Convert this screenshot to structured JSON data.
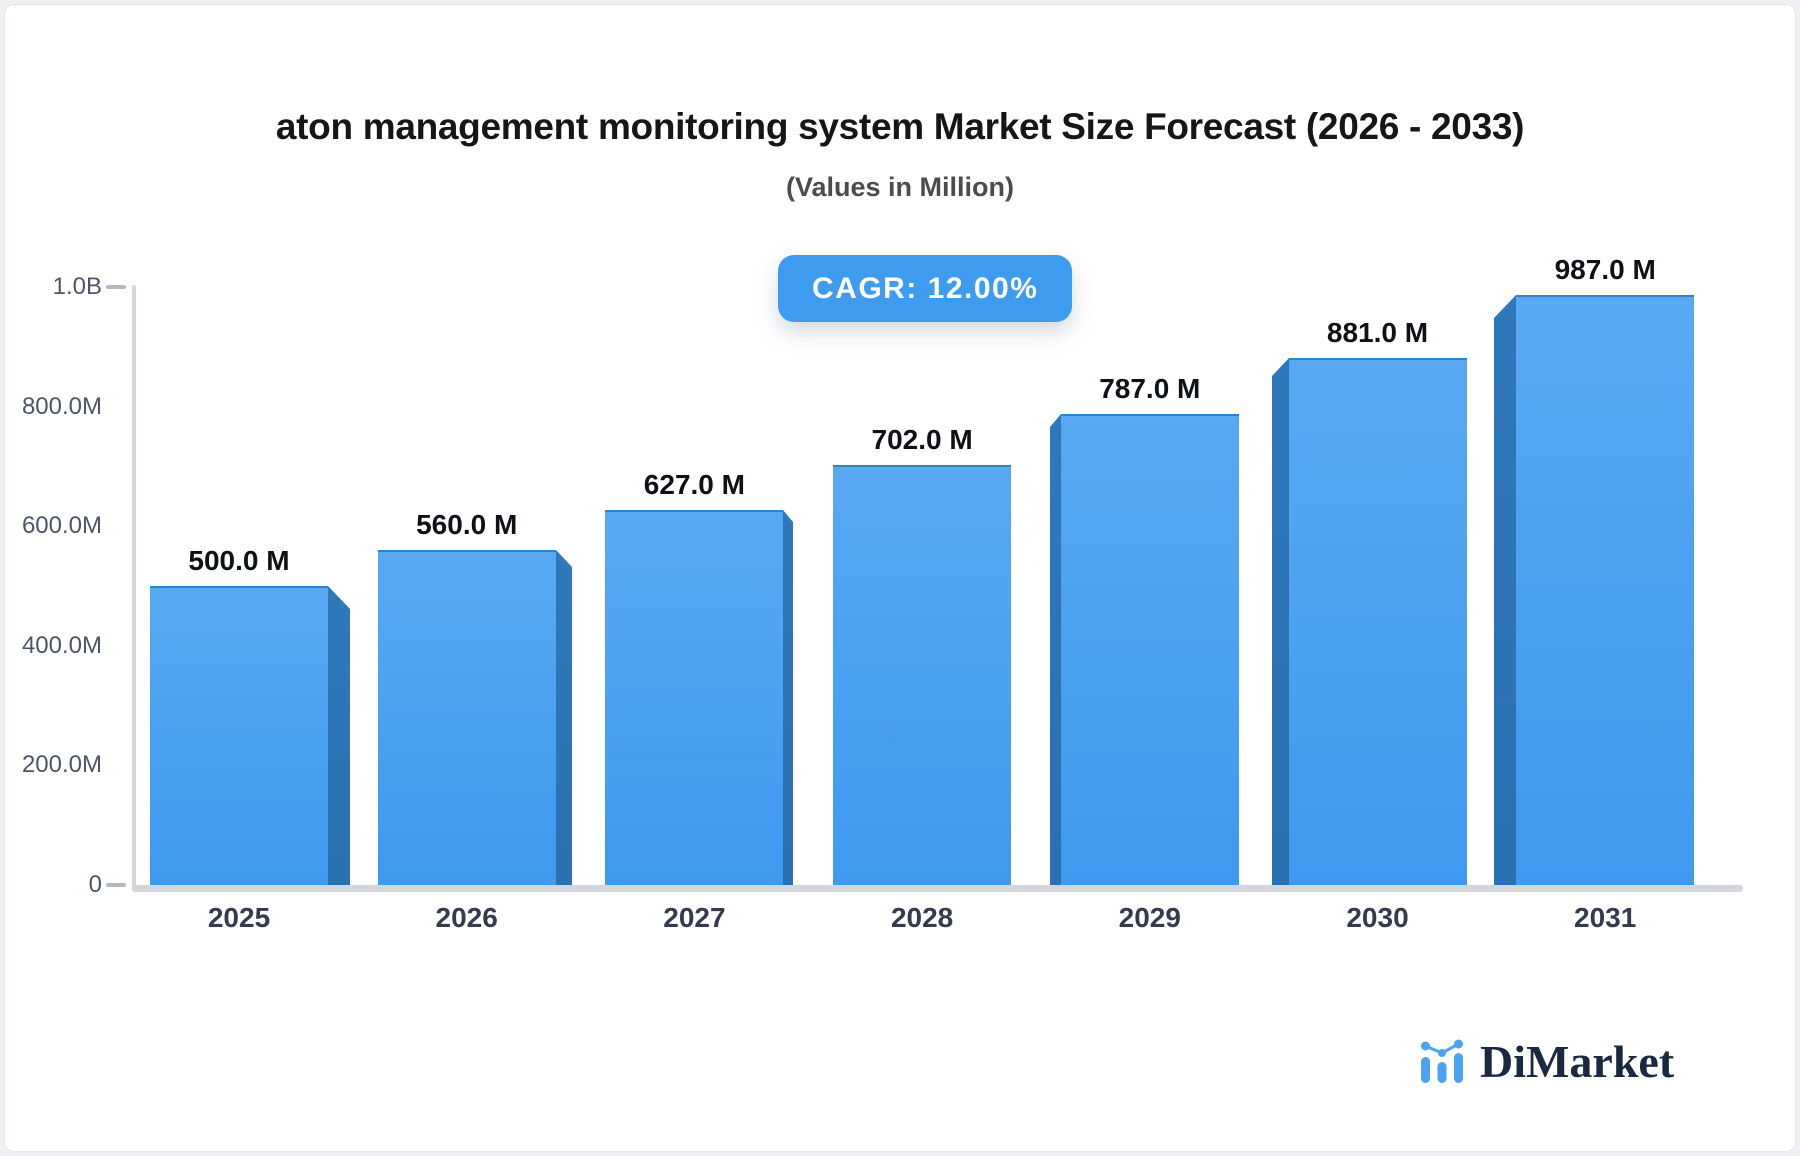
{
  "header": {
    "title": "aton management monitoring system Market Size Forecast (2026 - 2033)",
    "subtitle": "(Values in Million)",
    "cagr_label": "CAGR: 12.00%"
  },
  "brand": {
    "name": "DiMarket",
    "icon": "bar-chart-logo-icon"
  },
  "chart_data": {
    "type": "bar",
    "title": "aton management monitoring system Market Size Forecast (2026 - 2033)",
    "subtitle": "(Values in Million)",
    "unit": "Million",
    "cagr_percent": 12.0,
    "annotations": [
      "CAGR: 12.00%"
    ],
    "categories": [
      "2025",
      "2026",
      "2027",
      "2028",
      "2029",
      "2030",
      "2031"
    ],
    "values": [
      500,
      560,
      627,
      702,
      787,
      881,
      987
    ],
    "value_labels": [
      "500.0 M",
      "560.0 M",
      "627.0 M",
      "702.0 M",
      "787.0 M",
      "881.0 M",
      "987.0 M"
    ],
    "ylim": [
      0,
      1000
    ],
    "yticks": [
      {
        "value": 0,
        "label": "0",
        "dash": true
      },
      {
        "value": 200,
        "label": "200.0M",
        "dash": false
      },
      {
        "value": 400,
        "label": "400.0M",
        "dash": false
      },
      {
        "value": 600,
        "label": "600.0M",
        "dash": false
      },
      {
        "value": 800,
        "label": "800.0M",
        "dash": false
      },
      {
        "value": 1000,
        "label": "1.0B",
        "dash": true
      }
    ],
    "grid": false,
    "legend": false,
    "bar_style": "3d-perspective"
  },
  "colors": {
    "page_bg": "#eef0f3",
    "card_bg": "#ffffff",
    "title_color": "#161616",
    "subtitle_color": "#4c4c4c",
    "badge_bg": "#3e9cf0",
    "badge_text": "#ffffff",
    "axis_color": "#d4d6db",
    "tick_dash_color": "#b3b7c0",
    "y_label_color": "#4d5669",
    "x_label_color": "#333b4d",
    "value_label_color": "#0e1116",
    "bar_face_top": "#58a9f2",
    "bar_face_bottom": "#3e99f0",
    "bar_edge": "#2f82cd",
    "bar_side": "#2e78bb",
    "bar_side_dark": "#2b70b0",
    "brand_icon_color": "#4aa3f5",
    "brand_text_color": "#182941"
  }
}
